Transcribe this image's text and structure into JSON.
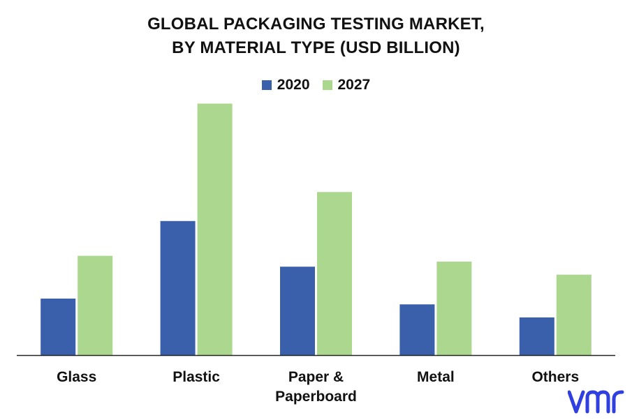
{
  "title_line1": "GLOBAL PACKAGING TESTING MARKET,",
  "title_line2": "BY MATERIAL TYPE (USD BILLION)",
  "logo_text": "vmr",
  "colors": {
    "s2020": "#3a5fab",
    "s2027": "#acd78f",
    "axis": "#222222",
    "logo": "#2f3fe0"
  },
  "chart_data": {
    "type": "bar",
    "title": "GLOBAL PACKAGING TESTING MARKET, BY MATERIAL TYPE (USD BILLION)",
    "categories": [
      "Glass",
      "Plastic",
      "Paper & Paperboard",
      "Metal",
      "Others"
    ],
    "category_lines": [
      [
        "Glass"
      ],
      [
        "Plastic"
      ],
      [
        "Paper &",
        "Paperboard"
      ],
      [
        "Metal"
      ],
      [
        "Others"
      ]
    ],
    "series": [
      {
        "name": "2020",
        "values": [
          0.78,
          1.85,
          1.22,
          0.7,
          0.52
        ]
      },
      {
        "name": "2027",
        "values": [
          1.37,
          3.47,
          2.25,
          1.29,
          1.11
        ]
      }
    ],
    "ylim": [
      0,
      3.6
    ],
    "legend_position": "top-center",
    "grid": false
  }
}
